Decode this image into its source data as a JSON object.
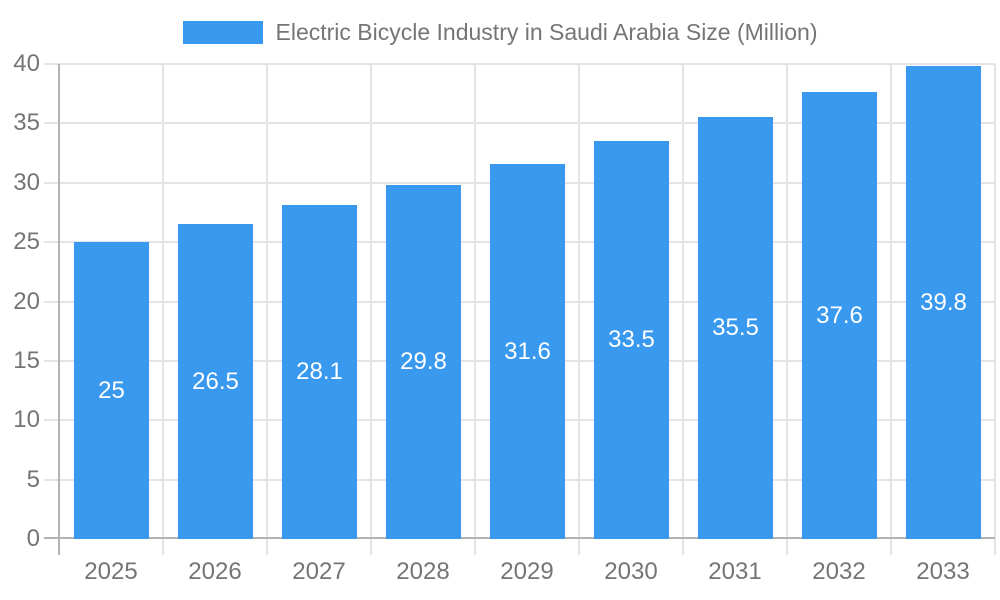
{
  "legend": {
    "swatch_color": "#3899EF",
    "label": "Electric Bicycle Industry in Saudi Arabia Size (Million)"
  },
  "chart_data": {
    "type": "bar",
    "title": "Electric Bicycle Industry in Saudi Arabia Size (Million)",
    "categories": [
      "2025",
      "2026",
      "2027",
      "2028",
      "2029",
      "2030",
      "2031",
      "2032",
      "2033"
    ],
    "values": [
      25,
      26.5,
      28.1,
      29.8,
      31.6,
      33.5,
      35.5,
      37.6,
      39.8
    ],
    "bar_labels": [
      "25",
      "26.5",
      "28.1",
      "29.8",
      "31.6",
      "33.5",
      "35.5",
      "37.6",
      "39.8"
    ],
    "xlabel": "",
    "ylabel": "",
    "ylim": [
      0,
      40
    ],
    "yticks": [
      0,
      5,
      10,
      15,
      20,
      25,
      30,
      35,
      40
    ],
    "grid": "horizontal ticks and vertical category boundaries",
    "legend_position": "top-center",
    "colors": {
      "bar": "#3899EF",
      "bar_label_text": "#FFFFFF",
      "axis_text": "#757575",
      "axis_line": "#B3B3B3",
      "grid_line": "#E4E4E4",
      "background": "#FFFFFF"
    }
  }
}
